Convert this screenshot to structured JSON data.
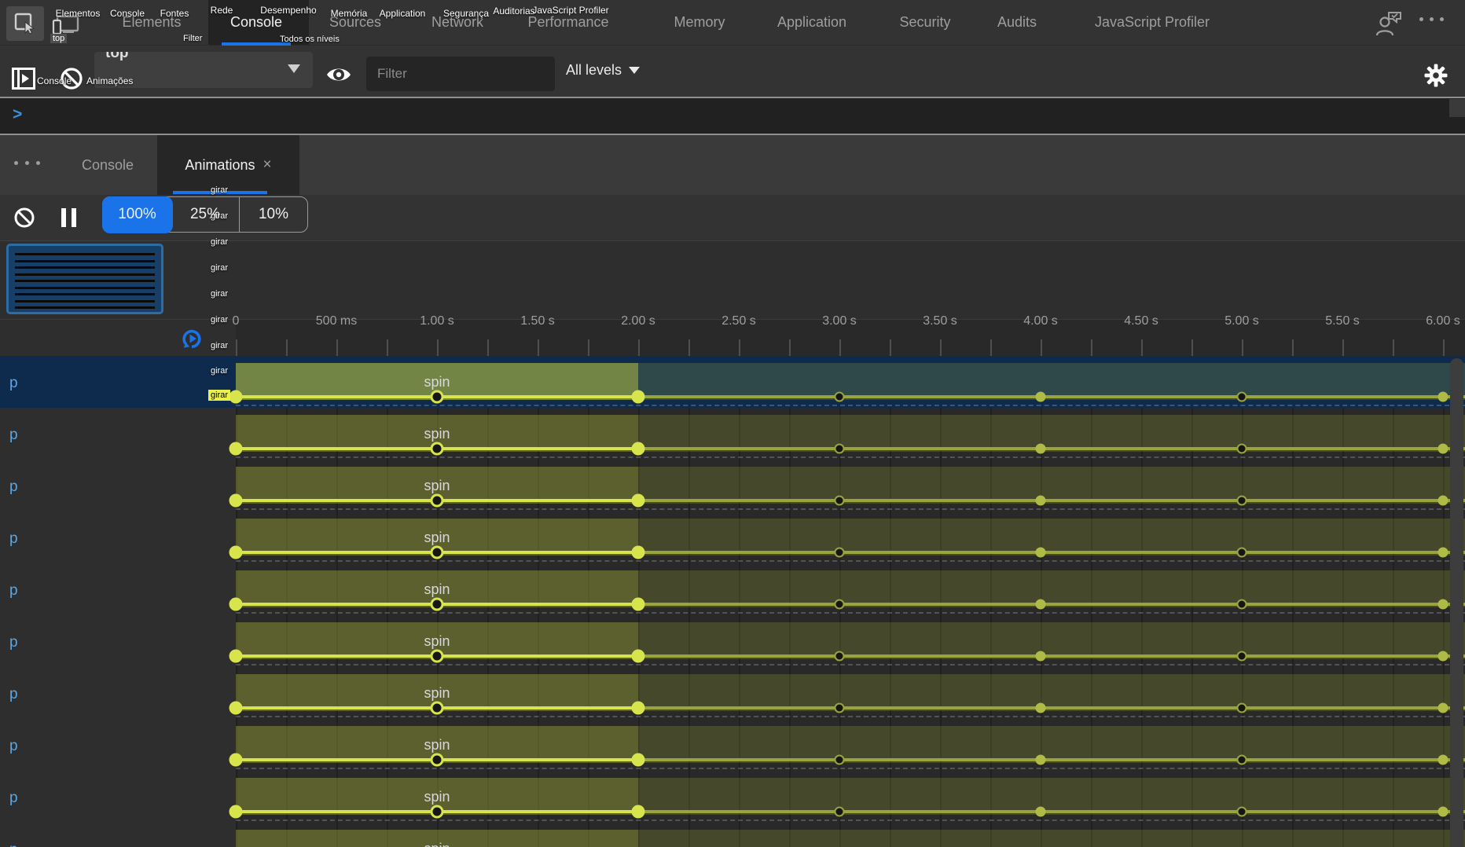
{
  "topbar": {
    "tabs": [
      {
        "label": "Elements",
        "active": false
      },
      {
        "label": "Console",
        "active": true
      },
      {
        "label": "Sources",
        "active": false
      },
      {
        "label": "Network",
        "active": false
      },
      {
        "label": "Performance",
        "active": false
      },
      {
        "label": "Memory",
        "active": false
      },
      {
        "label": "Application",
        "active": false
      },
      {
        "label": "Security",
        "active": false
      },
      {
        "label": "Audits",
        "active": false
      },
      {
        "label": "JavaScript Profiler",
        "active": false
      }
    ],
    "overlay_labels": [
      "Elementos",
      "Console",
      "Fontes",
      "Rede",
      "Desempenho",
      "Memória",
      "Application",
      "Segurança",
      "Auditorias",
      "JavaScript Profiler"
    ],
    "frame_label": "top",
    "overlay_filter": "Filter",
    "overlay_levels": "Todos os níveis"
  },
  "toolbar": {
    "console_mini": "Console",
    "animations_mini": "Animações",
    "context_selector": "top",
    "filter_placeholder": "Filter",
    "levels_label": "All levels"
  },
  "prompt": {
    "chevron": ">"
  },
  "drawer": {
    "tabs": [
      {
        "label": "Console",
        "active": false
      },
      {
        "label": "Animations",
        "active": true
      }
    ],
    "close_glyph": "×"
  },
  "controls": {
    "speeds": [
      {
        "label": "100%",
        "selected": true
      },
      {
        "label": "25%",
        "selected": false
      },
      {
        "label": "10%",
        "selected": false
      }
    ]
  },
  "timeline": {
    "tick_labels": [
      "0",
      "500 ms",
      "1.00 s",
      "1.50 s",
      "2.00 s",
      "2.50 s",
      "3.00 s",
      "3.50 s",
      "4.00 s",
      "4.50 s",
      "5.00 s",
      "5.50 s",
      "6.00 s"
    ],
    "girar_labels": [
      "girar",
      "girar",
      "girar",
      "girar",
      "girar",
      "girar",
      "girar",
      "girar",
      "girar"
    ],
    "girar_highlight_index": 8,
    "keyframes": [
      {
        "t": 0,
        "style": "solid",
        "bright": true
      },
      {
        "t": 1,
        "style": "hollow",
        "bright": true
      },
      {
        "t": 2,
        "style": "solid",
        "bright": true
      },
      {
        "t": 3,
        "style": "hollow",
        "bright": false
      },
      {
        "t": 4,
        "style": "solid",
        "bright": false
      },
      {
        "t": 5,
        "style": "hollow",
        "bright": false
      },
      {
        "t": 6,
        "style": "solid",
        "bright": false
      }
    ],
    "active_span_s": [
      0,
      2
    ],
    "visible_span_s": [
      0,
      6.1
    ]
  },
  "rows": [
    {
      "selector": "p",
      "animation": "spin",
      "selected": true
    },
    {
      "selector": "p",
      "animation": "spin",
      "selected": false
    },
    {
      "selector": "p",
      "animation": "spin",
      "selected": false
    },
    {
      "selector": "p",
      "animation": "spin",
      "selected": false
    },
    {
      "selector": "p",
      "animation": "spin",
      "selected": false
    },
    {
      "selector": "p",
      "animation": "spin",
      "selected": false
    },
    {
      "selector": "p",
      "animation": "spin",
      "selected": false
    },
    {
      "selector": "p",
      "animation": "spin",
      "selected": false
    },
    {
      "selector": "p",
      "animation": "spin",
      "selected": false
    },
    {
      "selector": "p",
      "animation": "spin",
      "selected": false
    }
  ],
  "colors": {
    "accent_blue": "#1a73e8",
    "keyframe_yellow": "#d8e44c",
    "dim_yellow": "#99a53c",
    "selected_row_navy": "#0e2a4c",
    "selection_highlight_yellow": "#e9f04e",
    "node_link_blue": "#5fa5e0"
  }
}
